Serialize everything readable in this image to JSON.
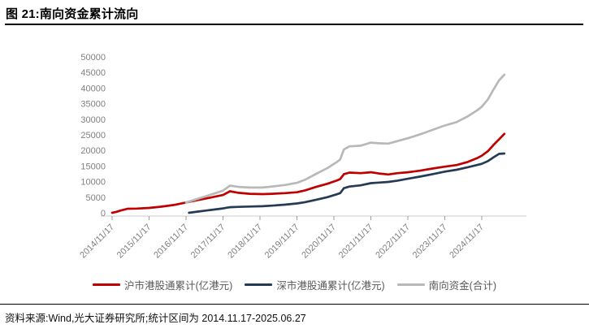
{
  "header": {
    "title": "图 21:南向资金累计流向"
  },
  "footer": {
    "source": "资料来源:Wind,光大证券研究所;统计区间为 2014.11.17-2025.06.27"
  },
  "chart_data": {
    "type": "line",
    "title": "南向资金累计流向",
    "xlabel": "",
    "ylabel": "",
    "unit": "亿港元",
    "grid": false,
    "legend_position": "bottom",
    "ylim": [
      0,
      50000
    ],
    "y_ticks": [
      0,
      5000,
      10000,
      15000,
      20000,
      25000,
      30000,
      35000,
      40000,
      45000,
      50000
    ],
    "x_ticks": [
      "2014/11/17",
      "2015/11/17",
      "2016/11/17",
      "2017/11/17",
      "2018/11/17",
      "2019/11/17",
      "2020/11/17",
      "2021/11/17",
      "2022/11/17",
      "2023/11/17",
      "2024/11/17"
    ],
    "x_range_years": [
      2014.88,
      2025.6
    ],
    "axis_color": "#d6d6d6",
    "tick_color": "#9e9e9e",
    "label_color": "#7f7f7f",
    "series": [
      {
        "key": "shanghai-connect-cumulative",
        "name": "沪市港股通累计(亿港元)",
        "color": "#c00000",
        "x": [
          2014.88,
          2015.0,
          2015.1,
          2015.3,
          2015.55,
          2015.88,
          2016.2,
          2016.55,
          2016.88,
          2017.2,
          2017.55,
          2017.88,
          2018.07,
          2018.3,
          2018.6,
          2018.95,
          2019.2,
          2019.55,
          2019.88,
          2020.1,
          2020.4,
          2020.7,
          2020.95,
          2021.05,
          2021.15,
          2021.3,
          2021.6,
          2021.88,
          2022.1,
          2022.35,
          2022.6,
          2022.88,
          2023.2,
          2023.55,
          2023.88,
          2024.2,
          2024.5,
          2024.75,
          2024.88,
          2025.05,
          2025.2,
          2025.35,
          2025.49
        ],
        "values": [
          0,
          300,
          700,
          1300,
          1350,
          1550,
          1950,
          2500,
          3300,
          4100,
          4900,
          5700,
          6900,
          6400,
          6100,
          6000,
          6100,
          6300,
          6600,
          7200,
          8300,
          9300,
          10300,
          10800,
          12400,
          12900,
          12700,
          13000,
          12600,
          12300,
          12700,
          13000,
          13500,
          14200,
          14800,
          15300,
          16300,
          17500,
          18300,
          19800,
          21800,
          23600,
          25300
        ]
      },
      {
        "key": "shenzhen-connect-cumulative",
        "name": "深市港股通累计(亿港元)",
        "color": "#253a55",
        "x": [
          2016.96,
          2017.2,
          2017.55,
          2017.88,
          2018.07,
          2018.3,
          2018.6,
          2018.95,
          2019.2,
          2019.55,
          2019.88,
          2020.1,
          2020.4,
          2020.7,
          2020.95,
          2021.05,
          2021.15,
          2021.3,
          2021.6,
          2021.88,
          2022.1,
          2022.35,
          2022.6,
          2022.88,
          2023.2,
          2023.55,
          2023.88,
          2024.2,
          2024.5,
          2024.75,
          2024.88,
          2025.05,
          2025.2,
          2025.35,
          2025.49
        ],
        "values": [
          0,
          400,
          900,
          1400,
          1800,
          1900,
          2000,
          2100,
          2300,
          2600,
          3000,
          3400,
          4200,
          5000,
          5900,
          6300,
          7900,
          8400,
          8800,
          9500,
          9700,
          9900,
          10300,
          10900,
          11600,
          12400,
          13200,
          13800,
          14600,
          15300,
          15700,
          16600,
          17800,
          18900,
          19000
        ]
      },
      {
        "key": "southbound-total",
        "name": "南向资金(合计)",
        "color": "#b8b8b8",
        "x": [
          2016.88,
          2016.96,
          2017.2,
          2017.55,
          2017.88,
          2018.07,
          2018.3,
          2018.6,
          2018.95,
          2019.2,
          2019.55,
          2019.88,
          2020.1,
          2020.4,
          2020.7,
          2020.95,
          2021.05,
          2021.15,
          2021.3,
          2021.6,
          2021.88,
          2022.1,
          2022.35,
          2022.6,
          2022.88,
          2023.2,
          2023.55,
          2023.88,
          2024.2,
          2024.5,
          2024.75,
          2024.88,
          2025.05,
          2025.2,
          2025.35,
          2025.49
        ],
        "values": [
          3300,
          3600,
          4500,
          5800,
          7100,
          8700,
          8300,
          8100,
          8100,
          8400,
          8900,
          9600,
          10600,
          12500,
          14300,
          16200,
          17100,
          20300,
          21300,
          21500,
          22500,
          22300,
          22200,
          23000,
          23900,
          25100,
          26600,
          28000,
          29100,
          30900,
          32800,
          34000,
          36400,
          39600,
          42500,
          44300
        ]
      }
    ]
  }
}
